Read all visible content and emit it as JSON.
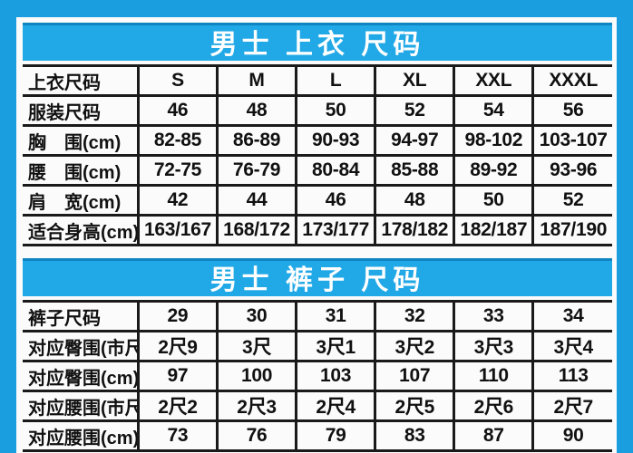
{
  "colors": {
    "background": "#1b9ee0",
    "panel": "#fbfbfb",
    "band": "#21a8e6",
    "band_edge": "#0e84c1",
    "border": "#1a1a1a",
    "title_text": "#ffffff",
    "cell_text": "#111111"
  },
  "chart_data": [
    {
      "type": "table",
      "title": "男士 上衣 尺码",
      "rows": [
        {
          "label": "上衣尺码",
          "values": [
            "S",
            "M",
            "L",
            "XL",
            "XXL",
            "XXXL"
          ]
        },
        {
          "label": "服装尺码",
          "values": [
            "46",
            "48",
            "50",
            "52",
            "54",
            "56"
          ]
        },
        {
          "label": "胸　围(cm)",
          "values": [
            "82-85",
            "86-89",
            "90-93",
            "94-97",
            "98-102",
            "103-107"
          ]
        },
        {
          "label": "腰　围(cm)",
          "values": [
            "72-75",
            "76-79",
            "80-84",
            "85-88",
            "89-92",
            "93-96"
          ]
        },
        {
          "label": "肩　宽(cm)",
          "values": [
            "42",
            "44",
            "46",
            "48",
            "50",
            "52"
          ]
        },
        {
          "label": "适合身高(cm)",
          "values": [
            "163/167",
            "168/172",
            "173/177",
            "178/182",
            "182/187",
            "187/190"
          ]
        }
      ]
    },
    {
      "type": "table",
      "title": "男士 裤子 尺码",
      "rows": [
        {
          "label": "裤子尺码",
          "values": [
            "29",
            "30",
            "31",
            "32",
            "33",
            "34"
          ]
        },
        {
          "label": "对应臀围(市尺)",
          "values": [
            "2尺9",
            "3尺",
            "3尺1",
            "3尺2",
            "3尺3",
            "3尺4"
          ]
        },
        {
          "label": "对应臀围(cm)",
          "values": [
            "97",
            "100",
            "103",
            "107",
            "110",
            "113"
          ]
        },
        {
          "label": "对应腰围(市尺)",
          "values": [
            "2尺2",
            "2尺3",
            "2尺4",
            "2尺5",
            "2尺6",
            "2尺7"
          ]
        },
        {
          "label": "对应腰围(cm)",
          "values": [
            "73",
            "76",
            "79",
            "83",
            "87",
            "90"
          ]
        }
      ]
    }
  ]
}
